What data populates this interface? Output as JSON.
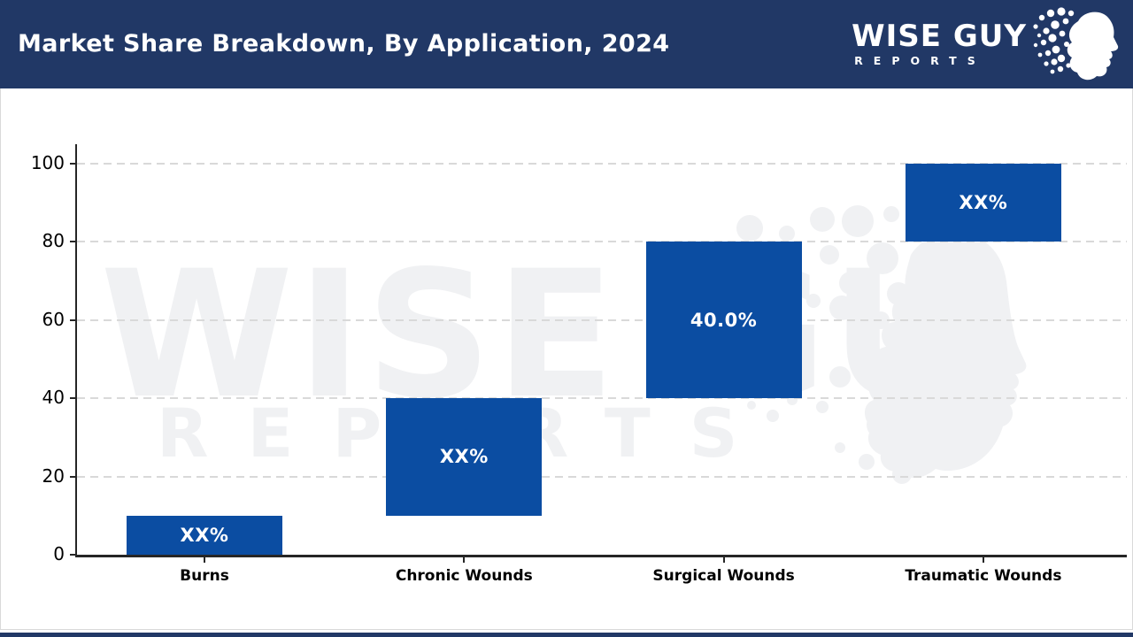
{
  "header": {
    "title": "Market Share Breakdown, By Application, 2024",
    "logo": {
      "primary": "WISE GUY",
      "secondary": "REPORTS"
    }
  },
  "watermark": {
    "primary": "WISE GU",
    "secondary": "REPORTS"
  },
  "colors": {
    "header_navy": "#213866",
    "footer_navy": "#213866",
    "bar_blue": "#0b4da2",
    "grid_gray": "#d9d9d9",
    "watermark_gray": "#f0f1f3",
    "title_white": "#ffffff"
  },
  "chart_data": {
    "type": "bar",
    "subtype": "waterfall-segments",
    "title": "Market Share Breakdown, By Application, 2024",
    "categories": [
      "Burns",
      "Chronic Wounds",
      "Surgical Wounds",
      "Traumatic Wounds"
    ],
    "segments": [
      {
        "category": "Burns",
        "start": 0,
        "value": 10,
        "label": "XX%"
      },
      {
        "category": "Chronic Wounds",
        "start": 10,
        "value": 30,
        "label": "XX%"
      },
      {
        "category": "Surgical Wounds",
        "start": 40,
        "value": 40,
        "label": "40.0%"
      },
      {
        "category": "Traumatic Wounds",
        "start": 80,
        "value": 20,
        "label": "XX%"
      }
    ],
    "xlabel": "",
    "ylabel": "",
    "ylim": [
      0,
      100
    ],
    "yticks": [
      0,
      20,
      40,
      60,
      80,
      100
    ],
    "grid": {
      "axis": "y",
      "style": "dashed",
      "color": "#d9d9d9"
    },
    "legend": null,
    "bar_color": "#0b4da2",
    "value_label_color": "#ffffff"
  }
}
